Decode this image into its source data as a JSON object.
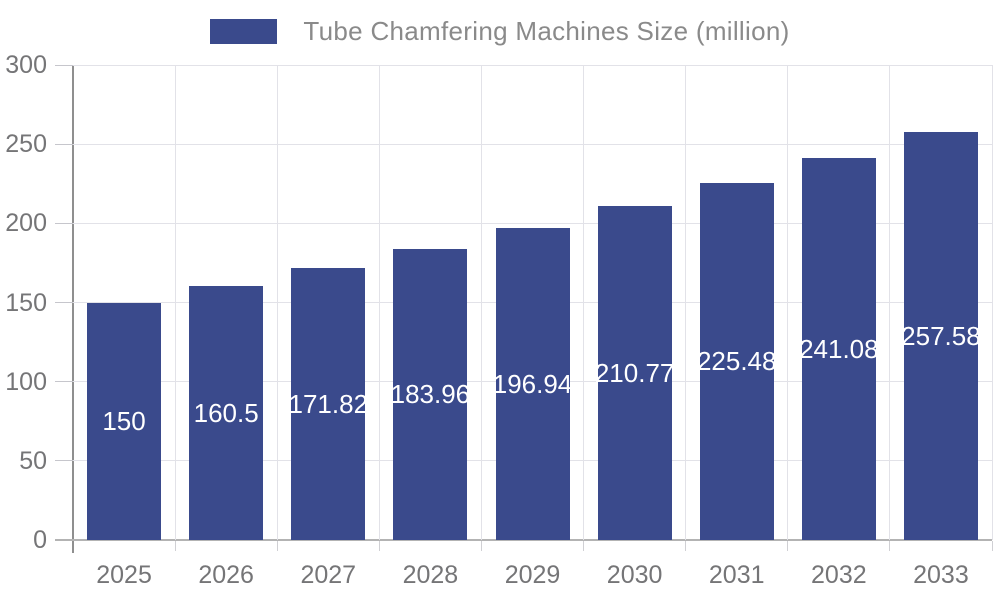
{
  "chart_data": {
    "type": "bar",
    "categories": [
      "2025",
      "2026",
      "2027",
      "2028",
      "2029",
      "2030",
      "2031",
      "2032",
      "2033"
    ],
    "series": [
      {
        "name": "Tube Chamfering Machines Size (million)",
        "values": [
          150,
          160.5,
          171.82,
          183.96,
          196.94,
          210.77,
          225.48,
          241.08,
          257.58
        ]
      }
    ],
    "value_labels": [
      "150",
      "160.5",
      "171.82",
      "183.96",
      "196.94",
      "210.77",
      "225.48",
      "241.08",
      "257.58"
    ],
    "title": "",
    "xlabel": "",
    "ylabel": "",
    "ylim": [
      0,
      300
    ],
    "yticks": [
      0,
      50,
      100,
      150,
      200,
      250,
      300
    ],
    "grid": true,
    "legend_position": "top",
    "colors": {
      "bar": "#3A4A8C",
      "value_label": "#ffffff",
      "axis_text": "#757577",
      "legend_text": "#8a8a8a",
      "grid_line": "#e2e2e8",
      "axis_line": "#8f8f8f"
    }
  }
}
